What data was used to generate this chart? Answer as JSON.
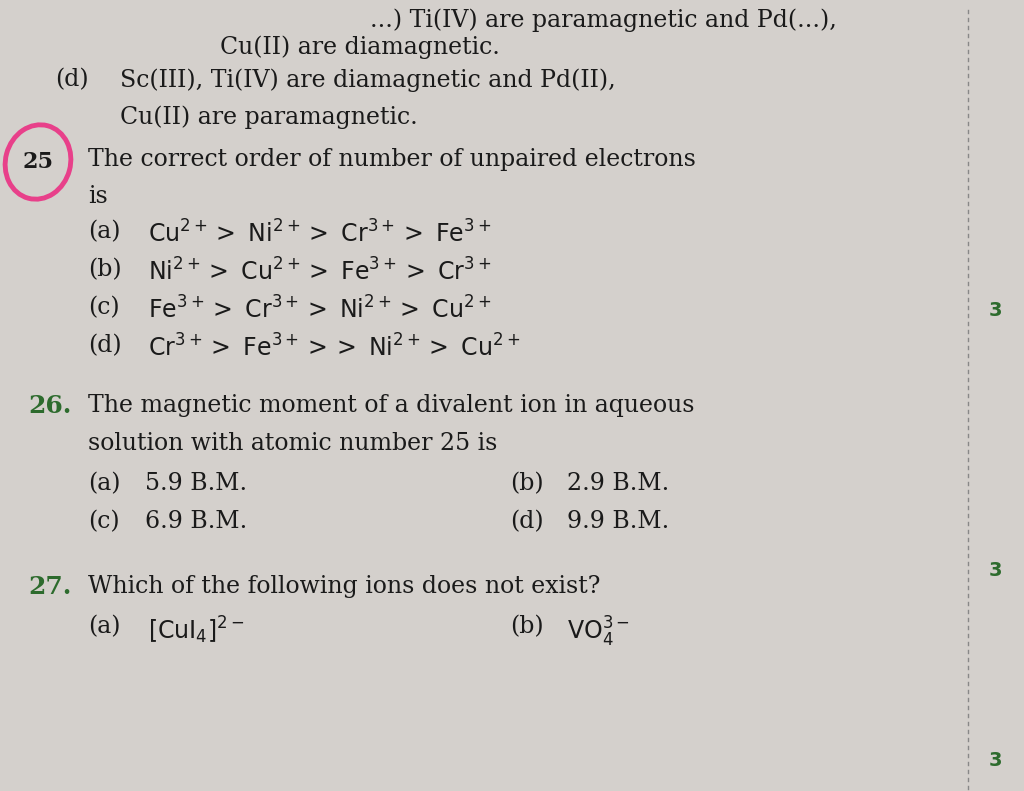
{
  "bg_color": "#d4d0cc",
  "text_color": "#1a1a1a",
  "green_color": "#2d6b2d",
  "pink_color": "#e8408a",
  "right_marker_color": "#3a7a3a",
  "content": {
    "line1": "Cu(II) are diamagnetic.",
    "line2_label": "(d)",
    "line2_text": "Sc(III), Ti(IV) are diamagnetic and Pd(II),",
    "line3": "Cu(II) are paramagnetic.",
    "q25_text1": "The correct order of number of unpaired electrons",
    "q25_text2": "is",
    "q25_a": "Cu^{2+} > Ni^{2+} > Cr^{3+} > Fe^{3+}",
    "q25_b": "Ni^{2+} > Cu^{2+} > Fe^{3+} > Cr^{3+}",
    "q25_c": "Fe^{3+} > Cr^{3+} > Ni^{2+} > Cu^{2+}",
    "q25_d": "Cr^{3+} > Fe^{3+} >> Ni^{2+} > Cu^{2+}",
    "q26_text1": "The magnetic moment of a divalent ion in aqueous",
    "q26_text2": "solution with atomic number 25 is",
    "q26_a": "5.9 B.M.",
    "q26_b": "2.9 B.M.",
    "q26_c": "6.9 B.M.",
    "q26_d": "9.9 B.M.",
    "q27_text": "Which of the following ions does not exist?",
    "q27_a": "[CuI_4]^{2-}",
    "q27_b": "VO_4^{3-}"
  }
}
